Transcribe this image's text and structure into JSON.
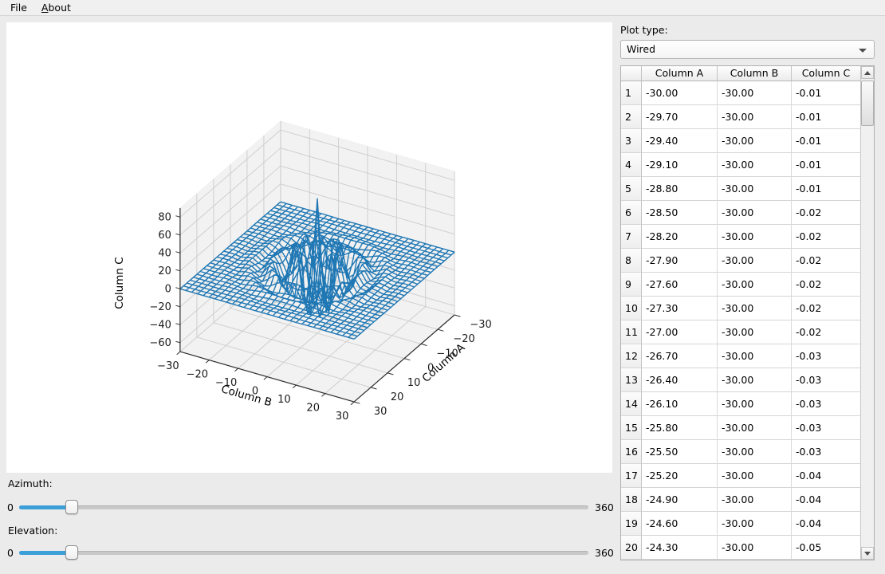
{
  "menu": {
    "items": [
      {
        "id": "file",
        "label": "File",
        "underline_index": -1
      },
      {
        "id": "about",
        "label": "About",
        "underline_index": 0
      }
    ]
  },
  "plot_type": {
    "label": "Plot type:",
    "value": "Wired"
  },
  "table": {
    "headers": [
      "Column A",
      "Column B",
      "Column C"
    ],
    "rows": [
      [
        "1",
        "-30.00",
        "-30.00",
        "-0.01"
      ],
      [
        "2",
        "-29.70",
        "-30.00",
        "-0.01"
      ],
      [
        "3",
        "-29.40",
        "-30.00",
        "-0.01"
      ],
      [
        "4",
        "-29.10",
        "-30.00",
        "-0.01"
      ],
      [
        "5",
        "-28.80",
        "-30.00",
        "-0.01"
      ],
      [
        "6",
        "-28.50",
        "-30.00",
        "-0.02"
      ],
      [
        "7",
        "-28.20",
        "-30.00",
        "-0.02"
      ],
      [
        "8",
        "-27.90",
        "-30.00",
        "-0.02"
      ],
      [
        "9",
        "-27.60",
        "-30.00",
        "-0.02"
      ],
      [
        "10",
        "-27.30",
        "-30.00",
        "-0.02"
      ],
      [
        "11",
        "-27.00",
        "-30.00",
        "-0.02"
      ],
      [
        "12",
        "-26.70",
        "-30.00",
        "-0.03"
      ],
      [
        "13",
        "-26.40",
        "-30.00",
        "-0.03"
      ],
      [
        "14",
        "-26.10",
        "-30.00",
        "-0.03"
      ],
      [
        "15",
        "-25.80",
        "-30.00",
        "-0.03"
      ],
      [
        "16",
        "-25.50",
        "-30.00",
        "-0.03"
      ],
      [
        "17",
        "-25.20",
        "-30.00",
        "-0.04"
      ],
      [
        "18",
        "-24.90",
        "-30.00",
        "-0.04"
      ],
      [
        "19",
        "-24.60",
        "-30.00",
        "-0.04"
      ],
      [
        "20",
        "-24.30",
        "-30.00",
        "-0.05"
      ]
    ]
  },
  "sliders": {
    "azimuth": {
      "label": "Azimuth:",
      "min_label": "0",
      "max_label": "360",
      "fraction": 0.092
    },
    "elevation": {
      "label": "Elevation:",
      "min_label": "0",
      "max_label": "360",
      "fraction": 0.092
    }
  },
  "chart_data": {
    "type": "wireframe-3d",
    "title": "",
    "xlabel": "Column B",
    "ylabel": "Column A",
    "zlabel": "Column C",
    "x_ticks": [
      -30,
      -20,
      -10,
      0,
      10,
      20,
      30
    ],
    "y_ticks": [
      -30,
      -20,
      -10,
      0,
      10,
      20,
      30
    ],
    "z_ticks": [
      80,
      60,
      40,
      20,
      0,
      -20,
      -40,
      -60
    ],
    "x_range": [
      -30,
      30
    ],
    "y_range": [
      -30,
      30
    ],
    "z_range": [
      -70,
      90
    ],
    "view": {
      "elev": 30,
      "azim": -60
    },
    "surface_formula": "C = 80*cos(0.9*r)*exp(-(r/7)^1.2), r = sqrt(A^2+B^2)",
    "surface_params": {
      "amplitude": 80,
      "freq": 0.9,
      "decay": 7,
      "decay_pow": 1.2
    },
    "mesh_step": 2,
    "grid": true,
    "legend": false,
    "line_color": "#1f77b4",
    "pane_color": "#f2f2f2",
    "grid_color": "#cccccc",
    "spine_color": "#2e2e2e",
    "tick_text_color": "#1a1a1a"
  },
  "colors": {
    "slider_fill": "#3b9fd8",
    "window_bg": "#ebebeb",
    "canvas_bg": "#ffffff"
  }
}
